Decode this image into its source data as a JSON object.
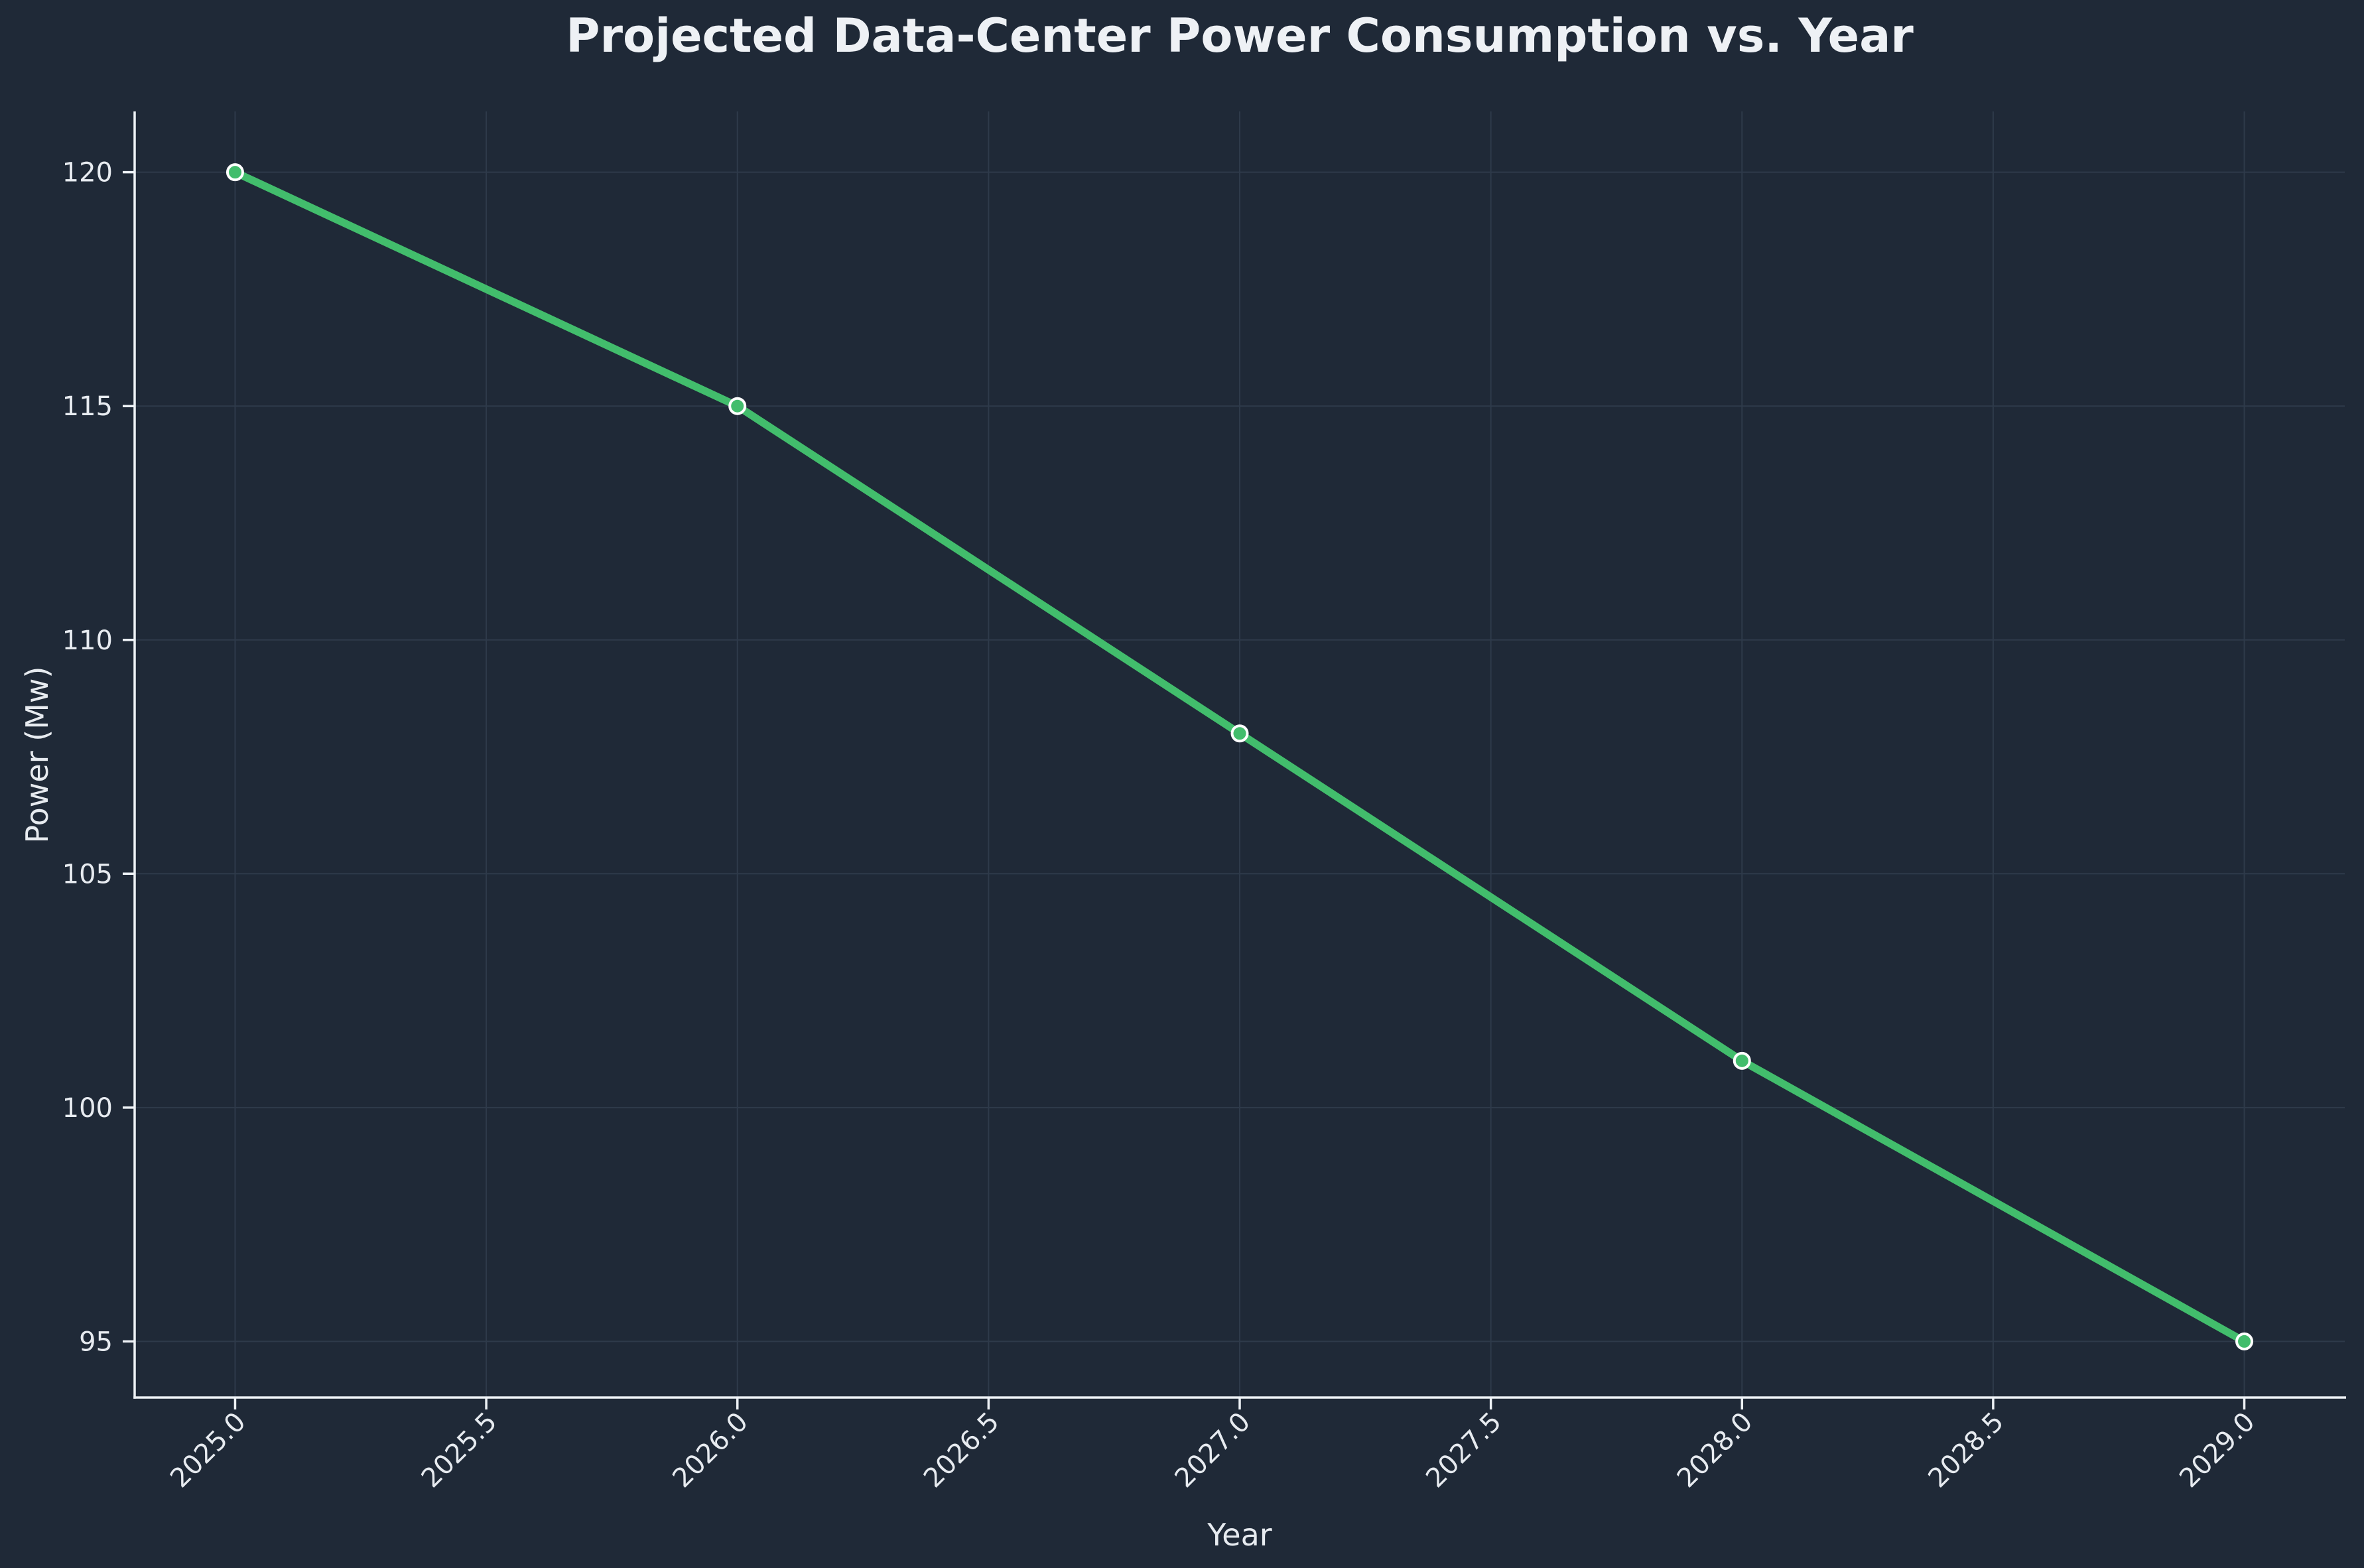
{
  "figure": {
    "background_color": "#1f2937"
  },
  "chart_data": {
    "type": "line",
    "title": "Projected Data-Center Power Consumption vs. Year",
    "xlabel": "Year",
    "ylabel": "Power (Mw)",
    "x": [
      2025,
      2026,
      2027,
      2028,
      2029
    ],
    "y": [
      120,
      115,
      108,
      101,
      95
    ],
    "xlim": [
      2024.8,
      2029.2
    ],
    "ylim": [
      93.8,
      121.3
    ],
    "xtick_values": [
      2025.0,
      2025.5,
      2026.0,
      2026.5,
      2027.0,
      2027.5,
      2028.0,
      2028.5,
      2029.0
    ],
    "xtick_labels": [
      "2025.0",
      "2025.5",
      "2026.0",
      "2026.5",
      "2027.0",
      "2027.5",
      "2028.0",
      "2028.5",
      "2029.0"
    ],
    "ytick_values": [
      95,
      100,
      105,
      110,
      115,
      120
    ],
    "ytick_labels": [
      "95",
      "100",
      "105",
      "110",
      "115",
      "120"
    ],
    "grid": true,
    "legend": false,
    "xtick_rotation_deg": 45,
    "style": {
      "line_color": "#42bd6c",
      "marker_fill": "#42bd6c",
      "marker_edge_color": "#ffffff",
      "grid_color": "#2e3a4a",
      "spine_color": "#eef2f6",
      "tick_text_color": "#e7ebf0",
      "title_color": "#eef1f5"
    }
  }
}
